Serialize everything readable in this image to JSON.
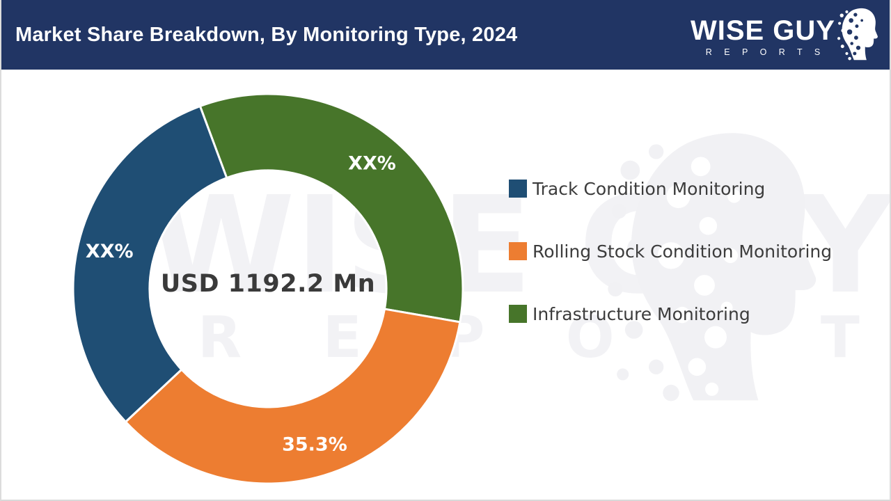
{
  "header": {
    "title": "Market Share Breakdown, By Monitoring Type, 2024",
    "bg_color": "#213564",
    "logo": {
      "line1": "WISE GUY",
      "line2": "R E P O R T S"
    }
  },
  "watermark": {
    "line1": "WISE GUY",
    "line2": "R E P O R T S"
  },
  "chart_data": {
    "type": "pie",
    "subtype": "donut",
    "title": "Market Share Breakdown, By Monitoring Type, 2024",
    "center_label": "USD 1192.2 Mn",
    "total_value_usd_mn": 1192.2,
    "legend_position": "right",
    "start_angle_deg": -20.4,
    "slice_order": [
      2,
      1,
      0
    ],
    "segments": [
      {
        "name": "Track Condition Monitoring",
        "label": "XX%",
        "percent": 31.3,
        "color": "#1F4E74"
      },
      {
        "name": "Rolling Stock Condition Monitoring",
        "label": "35.3%",
        "percent": 35.3,
        "color": "#ED7D31"
      },
      {
        "name": "Infrastructure Monitoring",
        "label": "XX%",
        "percent": 33.4,
        "color": "#47752A"
      }
    ]
  }
}
